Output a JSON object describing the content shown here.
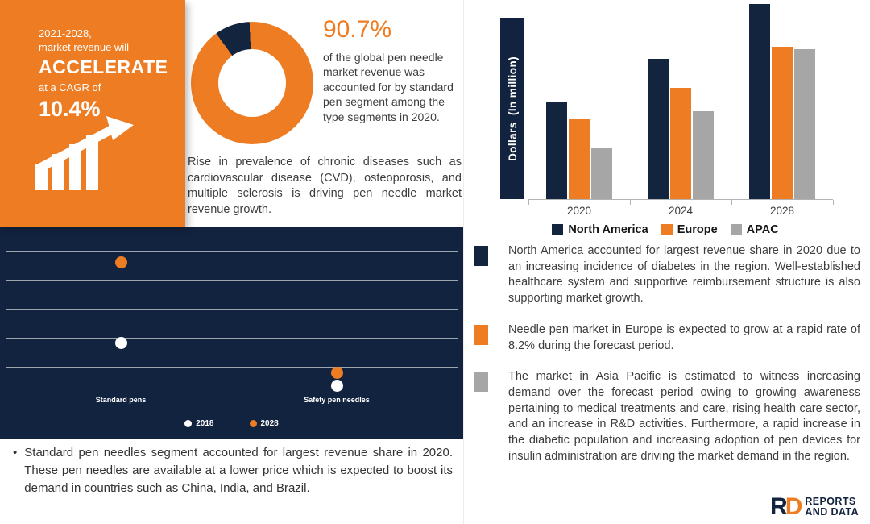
{
  "colors": {
    "orange": "#ee7c22",
    "navy": "#13243f",
    "gray": "#a6a6a6",
    "panel_navy": "#12233f",
    "body_text": "#3d3d3d"
  },
  "accelerate_box": {
    "period": "2021-2028,",
    "line2": "market revenue will",
    "accelerate": "ACCELERATE",
    "cagr_label": "at a CAGR of",
    "cagr_value": "10.4%"
  },
  "donut_section": {
    "share_value": "90.7%",
    "share_text": "of the global pen needle market revenue was accounted for by standard pen segment among the type segments in 2020.",
    "note": "Rise in prevalence of chronic diseases such as cardiovascular disease (CVD), osteoporosis, and multiple sclerosis is driving pen needle market revenue growth."
  },
  "dot_plot": {
    "categories": [
      "Standard pens",
      "Safety pen needles"
    ],
    "legend": [
      {
        "label": "2018"
      },
      {
        "label": "2028"
      }
    ]
  },
  "bar_chart": {
    "ylabel": "Dollars  (In million)",
    "categories": [
      "2020",
      "2024",
      "2028"
    ],
    "legend": [
      "North America",
      "Europe",
      "APAC"
    ]
  },
  "insights": [
    {
      "color": "#13243f",
      "text": "North America accounted for largest revenue share in 2020 due to an increasing incidence of diabetes in the region. Well-established healthcare system and supportive reimbursement structure is also supporting market growth."
    },
    {
      "color": "#ee7c22",
      "text": "Needle pen market in Europe is expected to grow at a rapid rate of 8.2% during the forecast period."
    },
    {
      "color": "#a6a6a6",
      "text": "The market in Asia Pacific is estimated to witness increasing demand over the forecast period owing to growing awareness pertaining to medical treatments and care, rising health care sector, and an increase in R&D activities. Furthermore, a rapid increase in the diabetic population and increasing adoption of pen devices for insulin administration are driving the market demand in the region."
    }
  ],
  "segment_bullet": "Standard pen needles segment accounted for largest revenue share in 2020. These pen needles are available at a lower price which is expected to boost its demand in countries such as China, India, and Brazil.",
  "logo": {
    "monogram_r": "R",
    "monogram_d": "D",
    "name_line1": "REPORTS",
    "name_line2": "AND DATA"
  },
  "chart_data": [
    {
      "type": "pie",
      "subtype": "donut",
      "labels": [
        "Standard pen segment",
        "Other type segments"
      ],
      "values": [
        90.7,
        9.3
      ],
      "colors": [
        "#ee7c22",
        "#13243f"
      ],
      "annotation": "90.7% of the global pen needle market revenue was accounted for by standard pen segment among the type segments in 2020."
    },
    {
      "type": "scatter",
      "title": "Pen needle revenue by product type, 2018 vs 2028 (dot plot)",
      "categories": [
        "Standard pens",
        "Safety pen needles"
      ],
      "series": [
        {
          "name": "2018",
          "color": "#ffffff",
          "values": [
            0.35,
            0.05
          ]
        },
        {
          "name": "2028",
          "color": "#ee7c22",
          "values": [
            0.92,
            0.14
          ]
        }
      ],
      "ylim": [
        0,
        1
      ],
      "grid": true,
      "legend_position": "bottom",
      "note": "No numeric axis labels shown in source; values are estimated relative positions."
    },
    {
      "type": "bar",
      "title": "Regional revenue forecast",
      "categories": [
        "2020",
        "2024",
        "2028"
      ],
      "series": [
        {
          "name": "North America",
          "color": "#13243f",
          "values": [
            0.5,
            0.72,
            1.0
          ]
        },
        {
          "name": "Europe",
          "color": "#ee7c22",
          "values": [
            0.41,
            0.57,
            0.78
          ]
        },
        {
          "name": "APAC",
          "color": "#a6a6a6",
          "values": [
            0.26,
            0.45,
            0.77
          ]
        }
      ],
      "ylabel": "Dollars  (In million)",
      "ylim": [
        0,
        1
      ],
      "legend_position": "bottom",
      "note": "No numeric y-axis ticks shown in source; values are estimated relative heights."
    }
  ]
}
